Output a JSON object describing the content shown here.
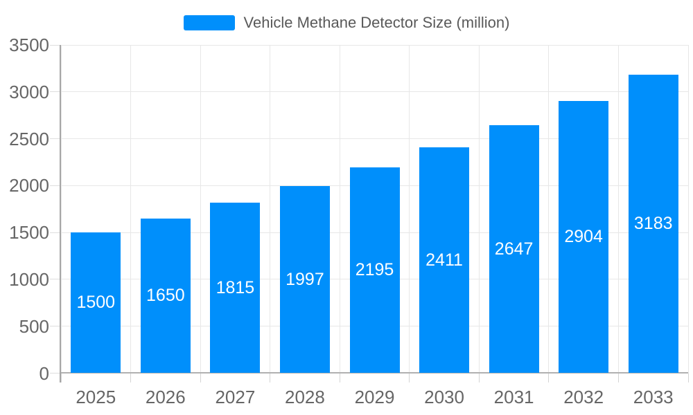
{
  "chart_data": {
    "type": "bar",
    "title": "Vehicle Methane Detector Size (million)",
    "categories": [
      "2025",
      "2026",
      "2027",
      "2028",
      "2029",
      "2030",
      "2031",
      "2032",
      "2033"
    ],
    "values": [
      1500,
      1650,
      1815,
      1997,
      2195,
      2411,
      2647,
      2904,
      3183
    ],
    "value_labels": [
      "1500",
      "1650",
      "1815",
      "1997",
      "2195",
      "2411",
      "2647",
      "2904",
      "3183"
    ],
    "xlabel": "",
    "ylabel": "",
    "ylim": [
      0,
      3500
    ],
    "ytick_step": 500,
    "ytick_labels": [
      "0",
      "500",
      "1000",
      "1500",
      "2000",
      "2500",
      "3000",
      "3500"
    ],
    "grid": "on",
    "legend": {
      "position": "top",
      "label": "Vehicle Methane Detector Size (million)",
      "marker": "bar-swatch-icon"
    },
    "colors": {
      "bar": "#008FFB",
      "bar_label": "#ffffff",
      "axis_label": "#666666",
      "legend_label": "#595959",
      "gridline": "#e7e7e7",
      "axis_line": "#a6a6a6",
      "background": "#ffffff"
    }
  }
}
